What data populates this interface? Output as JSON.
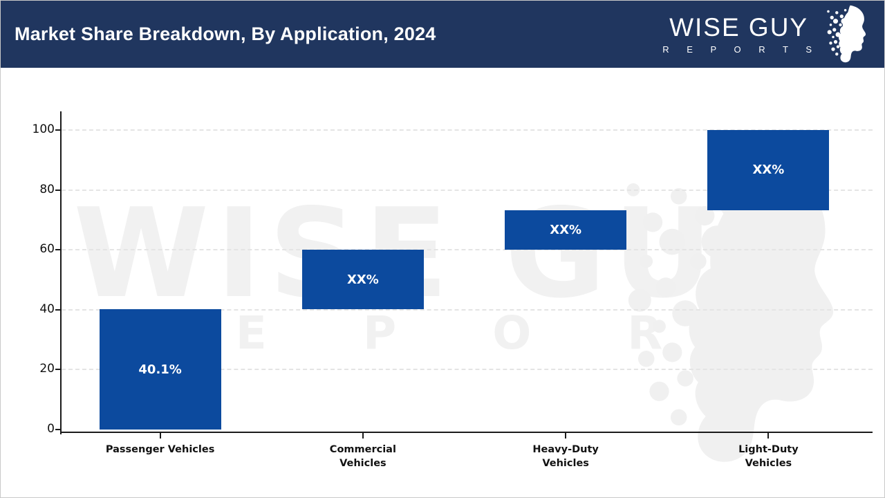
{
  "header": {
    "title": "Market Share Breakdown, By Application, 2024",
    "logo_line1": "WISE GUY",
    "logo_line2": "R E P O R T S"
  },
  "watermark": {
    "line1": "WISE GUY",
    "line2": "R E P O R T S"
  },
  "colors": {
    "header_bg": "#20365f",
    "bar": "#0c4a9e",
    "bar_label": "#ffffff",
    "gridline": "#e4e4e4",
    "axis": "#1a1a1a",
    "watermark": "#f1f1f1"
  },
  "chart_data": {
    "type": "bar",
    "subtype": "waterfall",
    "title": "Market Share Breakdown, By Application, 2024",
    "categories": [
      "Passenger Vehicles",
      "Commercial Vehicles",
      "Heavy-Duty Vehicles",
      "Light-Duty Vehicles"
    ],
    "category_label_lines": [
      [
        "Passenger Vehicles"
      ],
      [
        "Commercial",
        "Vehicles"
      ],
      [
        "Heavy-Duty",
        "Vehicles"
      ],
      [
        "Light-Duty",
        "Vehicles"
      ]
    ],
    "series": [
      {
        "name": "Market Share (%)",
        "segments": [
          {
            "category": "Passenger Vehicles",
            "start": 0,
            "end": 40.1,
            "label": "40.1%"
          },
          {
            "category": "Commercial Vehicles",
            "start": 40.1,
            "end": 60,
            "label": "XX%"
          },
          {
            "category": "Heavy-Duty Vehicles",
            "start": 60,
            "end": 73.3,
            "label": "XX%"
          },
          {
            "category": "Light-Duty Vehicles",
            "start": 73.3,
            "end": 100,
            "label": "XX%"
          }
        ]
      }
    ],
    "xlabel": "",
    "ylabel": "",
    "ylim": [
      0,
      100
    ],
    "yticks": [
      0,
      20,
      40,
      60,
      80,
      100
    ],
    "grid": "horizontal-dashed",
    "legend": "none"
  }
}
